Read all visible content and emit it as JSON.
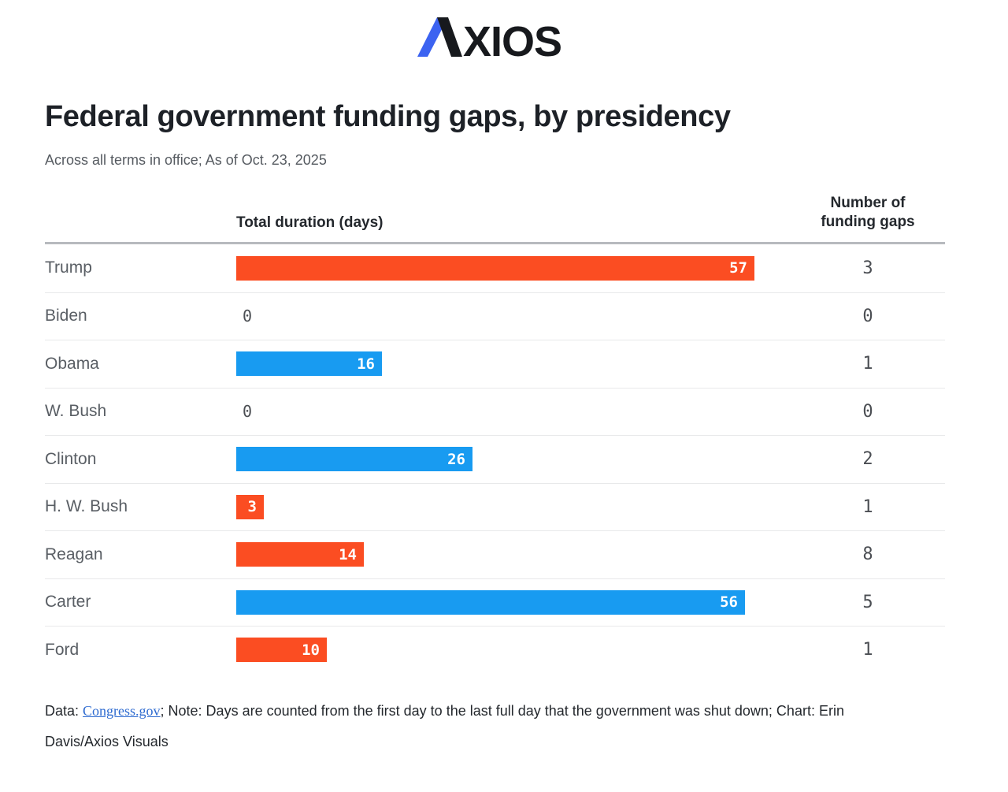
{
  "logo": {
    "brand": "AXIOS",
    "letters_after_a": "XIOS"
  },
  "colors": {
    "republican_bar": "#fb4d22",
    "democrat_bar": "#189bf1",
    "logo_blue": "#3c63f1",
    "logo_dark": "#17191d",
    "link_blue": "#2e6bd0",
    "bar_value_text": "#ffffff",
    "header_rule": "#b7babe",
    "row_rule": "#e8e9ea"
  },
  "header": {
    "title": "Federal government funding gaps, by presidency",
    "subtitle": "Across all terms in office; As of Oct. 23, 2025"
  },
  "table": {
    "duration_header": "Total duration (days)",
    "gaps_header_line1": "Number of",
    "gaps_header_line2": "funding gaps",
    "rows": [
      {
        "name": "Trump",
        "days": 57,
        "gaps": 3,
        "party": "republican"
      },
      {
        "name": "Biden",
        "days": 0,
        "gaps": 0,
        "party": "democrat"
      },
      {
        "name": "Obama",
        "days": 16,
        "gaps": 1,
        "party": "democrat"
      },
      {
        "name": "W. Bush",
        "days": 0,
        "gaps": 0,
        "party": "republican"
      },
      {
        "name": "Clinton",
        "days": 26,
        "gaps": 2,
        "party": "democrat"
      },
      {
        "name": "H. W. Bush",
        "days": 3,
        "gaps": 1,
        "party": "republican"
      },
      {
        "name": "Reagan",
        "days": 14,
        "gaps": 8,
        "party": "republican"
      },
      {
        "name": "Carter",
        "days": 56,
        "gaps": 5,
        "party": "democrat"
      },
      {
        "name": "Ford",
        "days": 10,
        "gaps": 1,
        "party": "republican"
      }
    ]
  },
  "chart_data": {
    "type": "bar",
    "orientation": "horizontal",
    "title": "Federal government funding gaps, by presidency",
    "subtitle": "Across all terms in office; As of Oct. 23, 2025",
    "categories": [
      "Trump",
      "Biden",
      "Obama",
      "W. Bush",
      "Clinton",
      "H. W. Bush",
      "Reagan",
      "Carter",
      "Ford"
    ],
    "series": [
      {
        "name": "Total duration (days)",
        "values": [
          57,
          0,
          16,
          0,
          26,
          3,
          14,
          56,
          10
        ]
      },
      {
        "name": "Number of funding gaps",
        "values": [
          3,
          0,
          1,
          0,
          2,
          1,
          8,
          5,
          1
        ]
      }
    ],
    "row_parties": [
      "republican",
      "democrat",
      "democrat",
      "republican",
      "democrat",
      "republican",
      "republican",
      "democrat",
      "republican"
    ],
    "bar_color_by_party": {
      "republican": "#fb4d22",
      "democrat": "#189bf1"
    },
    "xlim": [
      0,
      61
    ],
    "value_labels": "inside-end",
    "grid": "row-dividers-only",
    "legend": "none"
  },
  "footer": {
    "prefix": "Data: ",
    "link_text": "Congress.gov",
    "line1_rest": "; Note: Days are counted from the first day to the last full day that the government was shut down; Chart: Erin",
    "line2": "Davis/Axios Visuals"
  }
}
